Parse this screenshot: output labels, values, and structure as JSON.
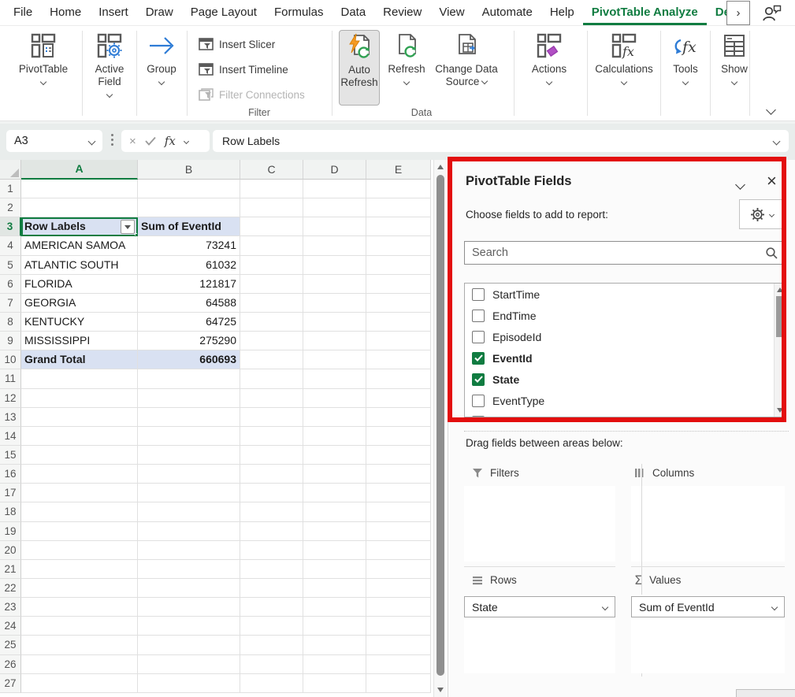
{
  "menubar": {
    "tabs": [
      {
        "label": "File"
      },
      {
        "label": "Home"
      },
      {
        "label": "Insert"
      },
      {
        "label": "Draw"
      },
      {
        "label": "Page Layout"
      },
      {
        "label": "Formulas"
      },
      {
        "label": "Data"
      },
      {
        "label": "Review"
      },
      {
        "label": "View"
      },
      {
        "label": "Automate"
      },
      {
        "label": "Help"
      },
      {
        "label": "PivotTable Analyze",
        "active": true
      },
      {
        "label": "De",
        "truncated": true
      }
    ],
    "overflow_button": "›"
  },
  "ribbon": {
    "pivottable": "PivotTable",
    "active_field": "Active Field",
    "group": "Group",
    "insert_slicer": "Insert Slicer",
    "insert_timeline": "Insert Timeline",
    "filter_connections": "Filter Connections",
    "filter_group_label": "Filter",
    "auto_refresh": "Auto Refresh",
    "refresh": "Refresh",
    "change_data_source": "Change Data Source",
    "data_group_label": "Data",
    "actions": "Actions",
    "calculations": "Calculations",
    "tools": "Tools",
    "show": "Show"
  },
  "formula_bar": {
    "name_box": "A3",
    "fx_label": "fx",
    "content": "Row Labels"
  },
  "grid": {
    "columns": [
      "A",
      "B",
      "C",
      "D",
      "E"
    ],
    "selected_column": "A",
    "selected_row": "3",
    "rows": [
      {
        "n": "1",
        "a": "",
        "b": ""
      },
      {
        "n": "2",
        "a": "",
        "b": ""
      },
      {
        "n": "3",
        "a": "Row Labels",
        "b": "Sum of EventId",
        "t": "header"
      },
      {
        "n": "4",
        "a": "AMERICAN SAMOA",
        "b": "73241",
        "t": "data"
      },
      {
        "n": "5",
        "a": "ATLANTIC SOUTH",
        "b": "61032",
        "t": "data"
      },
      {
        "n": "6",
        "a": "FLORIDA",
        "b": "121817",
        "t": "data"
      },
      {
        "n": "7",
        "a": "GEORGIA",
        "b": "64588",
        "t": "data"
      },
      {
        "n": "8",
        "a": "KENTUCKY",
        "b": "64725",
        "t": "data"
      },
      {
        "n": "9",
        "a": "MISSISSIPPI",
        "b": "275290",
        "t": "data"
      },
      {
        "n": "10",
        "a": "Grand Total",
        "b": "660693",
        "t": "total"
      },
      {
        "n": "11",
        "a": "",
        "b": ""
      },
      {
        "n": "12",
        "a": "",
        "b": ""
      },
      {
        "n": "13",
        "a": "",
        "b": ""
      },
      {
        "n": "14",
        "a": "",
        "b": ""
      },
      {
        "n": "15",
        "a": "",
        "b": ""
      },
      {
        "n": "16",
        "a": "",
        "b": ""
      },
      {
        "n": "17",
        "a": "",
        "b": ""
      },
      {
        "n": "18",
        "a": "",
        "b": ""
      },
      {
        "n": "19",
        "a": "",
        "b": ""
      },
      {
        "n": "20",
        "a": "",
        "b": ""
      },
      {
        "n": "21",
        "a": "",
        "b": ""
      },
      {
        "n": "22",
        "a": "",
        "b": ""
      },
      {
        "n": "23",
        "a": "",
        "b": ""
      },
      {
        "n": "24",
        "a": "",
        "b": ""
      },
      {
        "n": "25",
        "a": "",
        "b": ""
      },
      {
        "n": "26",
        "a": "",
        "b": ""
      },
      {
        "n": "27",
        "a": "",
        "b": ""
      }
    ]
  },
  "fields_panel": {
    "title": "PivotTable Fields",
    "choose_label": "Choose fields to add to report:",
    "search_placeholder": "Search",
    "fields": [
      {
        "label": "StartTime",
        "checked": false
      },
      {
        "label": "EndTime",
        "checked": false
      },
      {
        "label": "EpisodeId",
        "checked": false
      },
      {
        "label": "EventId",
        "checked": true
      },
      {
        "label": "State",
        "checked": true
      },
      {
        "label": "EventType",
        "checked": false
      },
      {
        "label": "",
        "checked": false
      }
    ],
    "drag_label": "Drag fields between areas below:",
    "areas": {
      "filters": "Filters",
      "columns": "Columns",
      "rows": "Rows",
      "values": "Values"
    },
    "rows_value": "State",
    "values_value": "Sum of EventId"
  },
  "colors": {
    "accent_green": "#107C41",
    "pivot_fill": "#D9E1F2",
    "annotation_red": "#E30E0E",
    "checkbox_green": "#107C41"
  }
}
